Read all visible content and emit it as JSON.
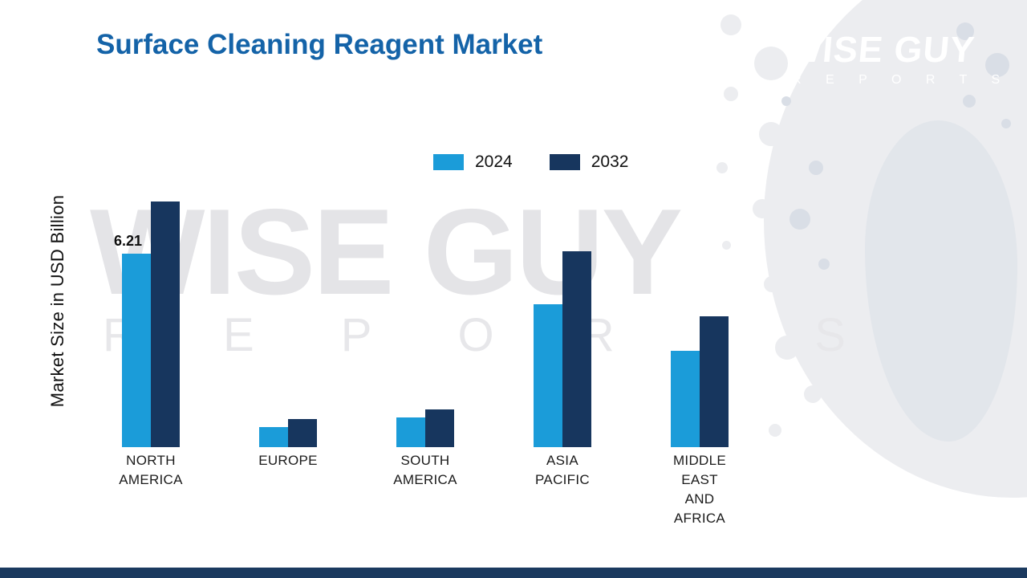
{
  "page": {
    "title": "Surface Cleaning Reagent Market"
  },
  "logo": {
    "line1": "WISE GUY",
    "line2": "R E P O R T S"
  },
  "watermark": {
    "line1": "WISE GUY",
    "line2": "R E P O R T S"
  },
  "colors": {
    "title_blue": "#1463a8",
    "bar_2024": "#1b9cd9",
    "bar_2032": "#17365e",
    "footer": "#1b3a5f",
    "watermark_gray": "#e4e4e7"
  },
  "chart_data": {
    "type": "bar",
    "title": "Surface Cleaning Reagent Market",
    "xlabel": "",
    "ylabel": "Market Size in USD Billion",
    "ylim": [
      0,
      8
    ],
    "grid": false,
    "legend_position": "top",
    "categories": [
      "NORTH AMERICA",
      "EUROPE",
      "SOUTH AMERICA",
      "ASIA PACIFIC",
      "MIDDLE EAST AND AFRICA"
    ],
    "series": [
      {
        "name": "2024",
        "color": "#1b9cd9",
        "values": [
          6.21,
          0.65,
          0.95,
          4.6,
          3.1
        ]
      },
      {
        "name": "2032",
        "color": "#17365e",
        "values": [
          7.9,
          0.9,
          1.2,
          6.3,
          4.2
        ]
      }
    ],
    "data_labels": [
      {
        "series": "2024",
        "category": "NORTH AMERICA",
        "value": "6.21"
      }
    ]
  }
}
